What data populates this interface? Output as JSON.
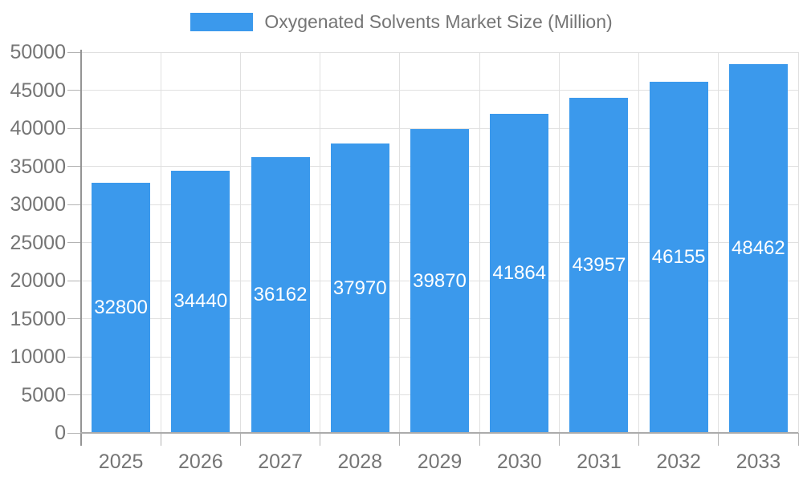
{
  "chart_data": {
    "type": "bar",
    "title": "Oxygenated Solvents Market Size (Million)",
    "categories": [
      "2025",
      "2026",
      "2027",
      "2028",
      "2029",
      "2030",
      "2031",
      "2032",
      "2033"
    ],
    "values": [
      32800,
      34440,
      36162,
      37970,
      39870,
      41864,
      43957,
      46155,
      48462
    ],
    "series": [
      {
        "name": "Oxygenated Solvents Market Size (Million)",
        "values": [
          32800,
          34440,
          36162,
          37970,
          39870,
          41864,
          43957,
          46155,
          48462
        ]
      }
    ],
    "xlabel": "",
    "ylabel": "",
    "ylim": [
      0,
      50000
    ],
    "yticks": [
      0,
      5000,
      10000,
      15000,
      20000,
      25000,
      30000,
      35000,
      40000,
      45000,
      50000
    ],
    "grid": true,
    "legend_position": "top-center",
    "bar_labels": "inside-center-white",
    "colors": {
      "bar": "#3B99EC",
      "grid": "#e0e0e0",
      "axis_y": "#949494",
      "axis_x": "#ababab",
      "tick": "#b3b3b3",
      "tick_text": "#757575",
      "legend_text": "#757575",
      "bar_label": "#ffffff",
      "background": "#ffffff"
    }
  }
}
